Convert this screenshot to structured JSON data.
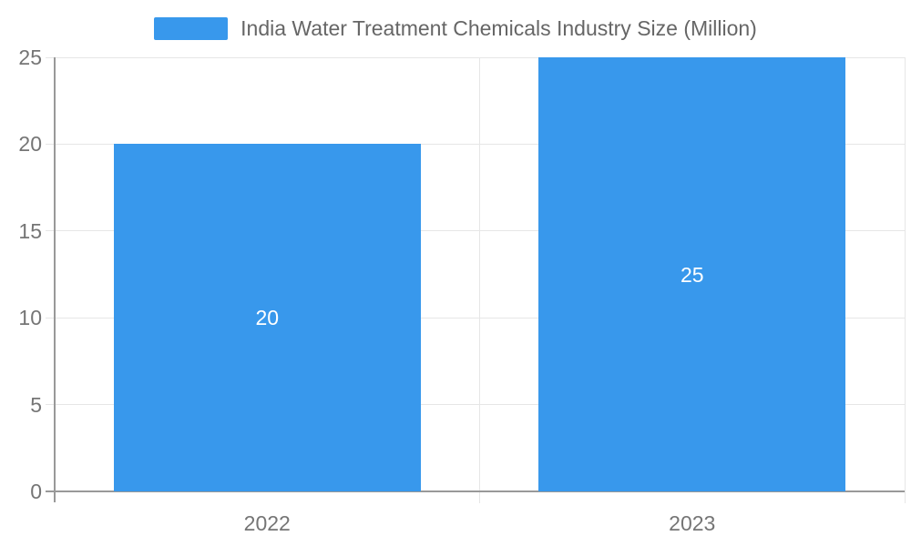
{
  "chart_data": {
    "type": "bar",
    "title": "India Water Treatment Chemicals Industry Size (Million)",
    "categories": [
      "2022",
      "2023"
    ],
    "series": [
      {
        "name": "India Water Treatment Chemicals Industry Size (Million)",
        "values": [
          20,
          25
        ]
      }
    ],
    "data_labels": [
      "20",
      "25"
    ],
    "y_ticks": [
      0,
      5,
      10,
      15,
      20,
      25
    ],
    "ylim": [
      0,
      25
    ],
    "xlabel": "",
    "ylabel": "",
    "grid": "on",
    "legend_position": "top-center",
    "colors": {
      "bar": "#3898ec",
      "bar_label_text": "#ffffff",
      "axis_line": "#999999",
      "grid_line": "#e6e6e6",
      "tick_text": "#757575",
      "legend_text": "#666666",
      "background": "#ffffff"
    }
  },
  "legend": {
    "label": "India Water Treatment Chemicals Industry Size (Million)"
  }
}
